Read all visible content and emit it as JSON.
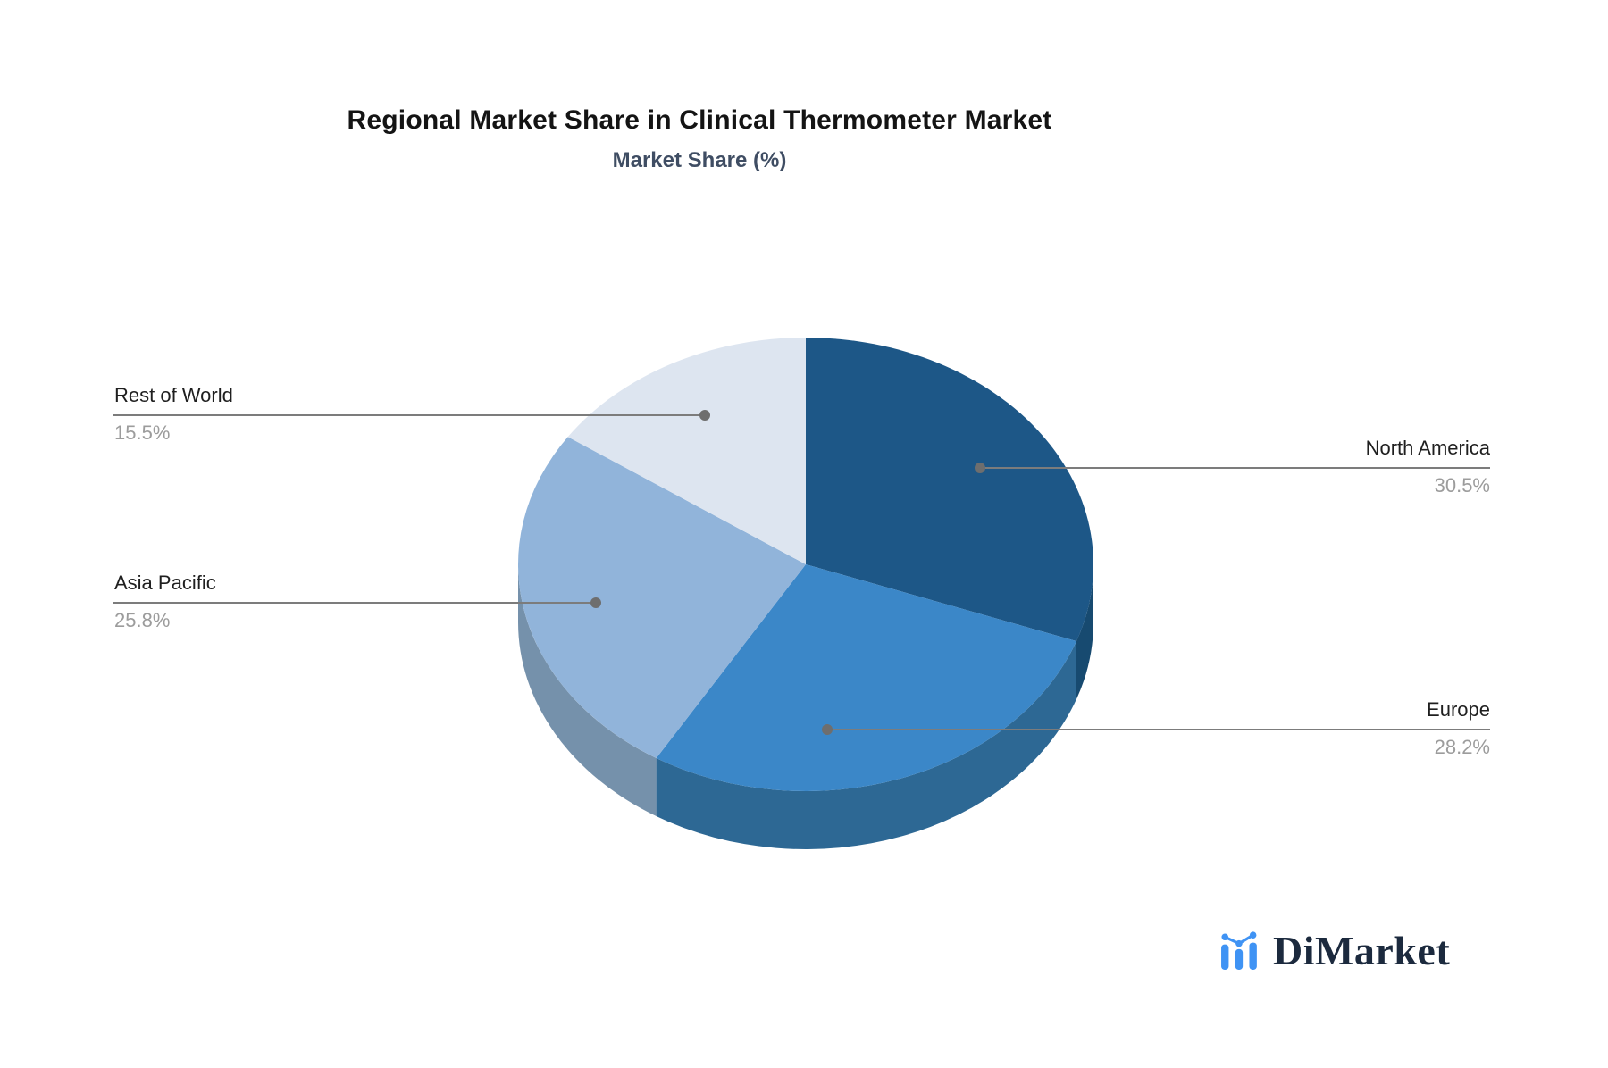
{
  "header": {
    "title": "Regional Market Share in Clinical Thermometer Market",
    "subtitle": "Market Share (%)"
  },
  "brand": {
    "name": "DiMarket"
  },
  "chart_data": {
    "type": "pie",
    "style": "pie3d",
    "title": "Regional Market Share in Clinical Thermometer Market",
    "subtitle": "Market Share (%)",
    "unit": "%",
    "start_angle": "12-o-clock",
    "direction": "clockwise",
    "legend": "none",
    "slices": [
      {
        "label": "North America",
        "value": 30.5,
        "display": "30.5%",
        "color": "#1d5787",
        "side_color": "#174a70"
      },
      {
        "label": "Europe",
        "value": 28.2,
        "display": "28.2%",
        "color": "#3b87c8",
        "side_color": "#2d6894"
      },
      {
        "label": "Asia Pacific",
        "value": 25.8,
        "display": "25.8%",
        "color": "#91b4da",
        "side_color": "#7591ab"
      },
      {
        "label": "Rest of World",
        "value": 15.5,
        "display": "15.5%",
        "color": "#dde5f0",
        "side_color": "#b2bfd0"
      }
    ],
    "label_text_color": "#1f1f1f",
    "value_text_color": "#9c9c9c",
    "leader_line_color": "#7c7c7c",
    "leader_dot_color": "#6e6e6e"
  }
}
